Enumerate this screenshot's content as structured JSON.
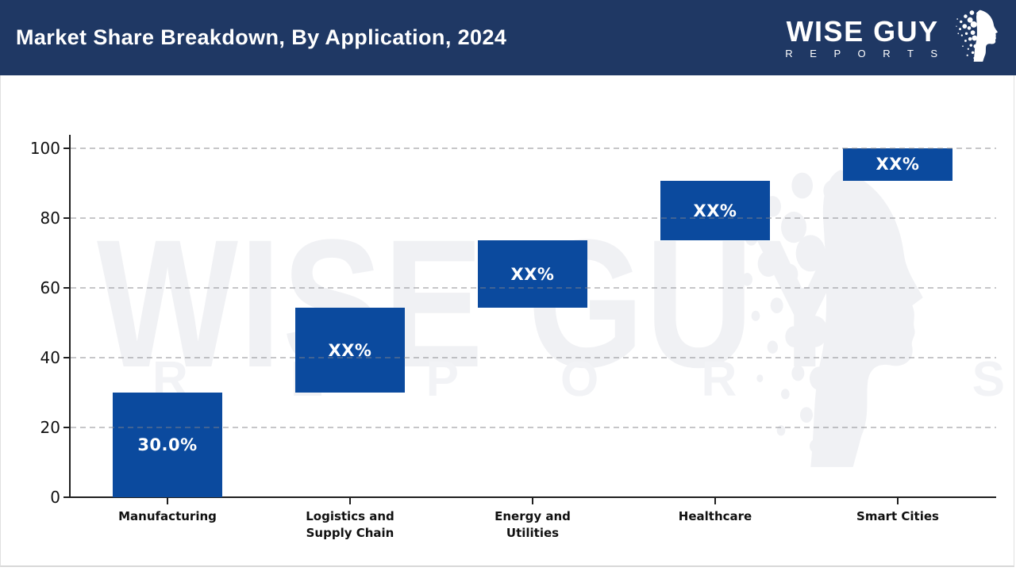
{
  "header": {
    "title": "Market Share Breakdown, By Application, 2024",
    "logo": {
      "wordmark": "WISE GUY",
      "subtext": "R E P O R T S",
      "icon": "dotted-head-profile-icon"
    }
  },
  "watermark": {
    "wordmark": "WISE GUY",
    "subtext": "R E P O R T S"
  },
  "chart_data": {
    "type": "bar",
    "subtype": "waterfall",
    "title": "Market Share Breakdown, By Application, 2024",
    "categories": [
      "Manufacturing",
      "Logistics and Supply Chain",
      "Energy and Utilities",
      "Healthcare",
      "Smart Cities"
    ],
    "category_label_lines": [
      [
        "Manufacturing"
      ],
      [
        "Logistics and",
        "Supply Chain"
      ],
      [
        "Energy and",
        "Utilities"
      ],
      [
        "Healthcare"
      ],
      [
        "Smart Cities"
      ]
    ],
    "segments": [
      {
        "category": "Manufacturing",
        "start": 0,
        "end": 30,
        "value": 30.0,
        "label": "30.0%"
      },
      {
        "category": "Logistics and Supply Chain",
        "start": 30,
        "end": 54.3,
        "value": 24.3,
        "label": "XX%"
      },
      {
        "category": "Energy and Utilities",
        "start": 54.3,
        "end": 73.6,
        "value": 19.3,
        "label": "XX%"
      },
      {
        "category": "Healthcare",
        "start": 73.6,
        "end": 90.7,
        "value": 17.1,
        "label": "XX%"
      },
      {
        "category": "Smart Cities",
        "start": 90.7,
        "end": 100,
        "value": 9.3,
        "label": "XX%"
      }
    ],
    "xlabel": "",
    "ylabel": "",
    "ylim": [
      0,
      100
    ],
    "yticks": [
      0,
      20,
      40,
      60,
      80,
      100
    ],
    "grid": "horizontal-dashed",
    "legend": "none",
    "bar_color": "#0b4a9e",
    "bar_label_color": "#ffffff",
    "axis_color": "#1f1f1f",
    "grid_color": "#d9d9d9"
  },
  "colors": {
    "header_bg": "#1f3864",
    "canvas_bg": "#ffffff",
    "watermark": "#f0f1f4",
    "logo_text": "#ffffff",
    "border": "#d8d8d8"
  }
}
